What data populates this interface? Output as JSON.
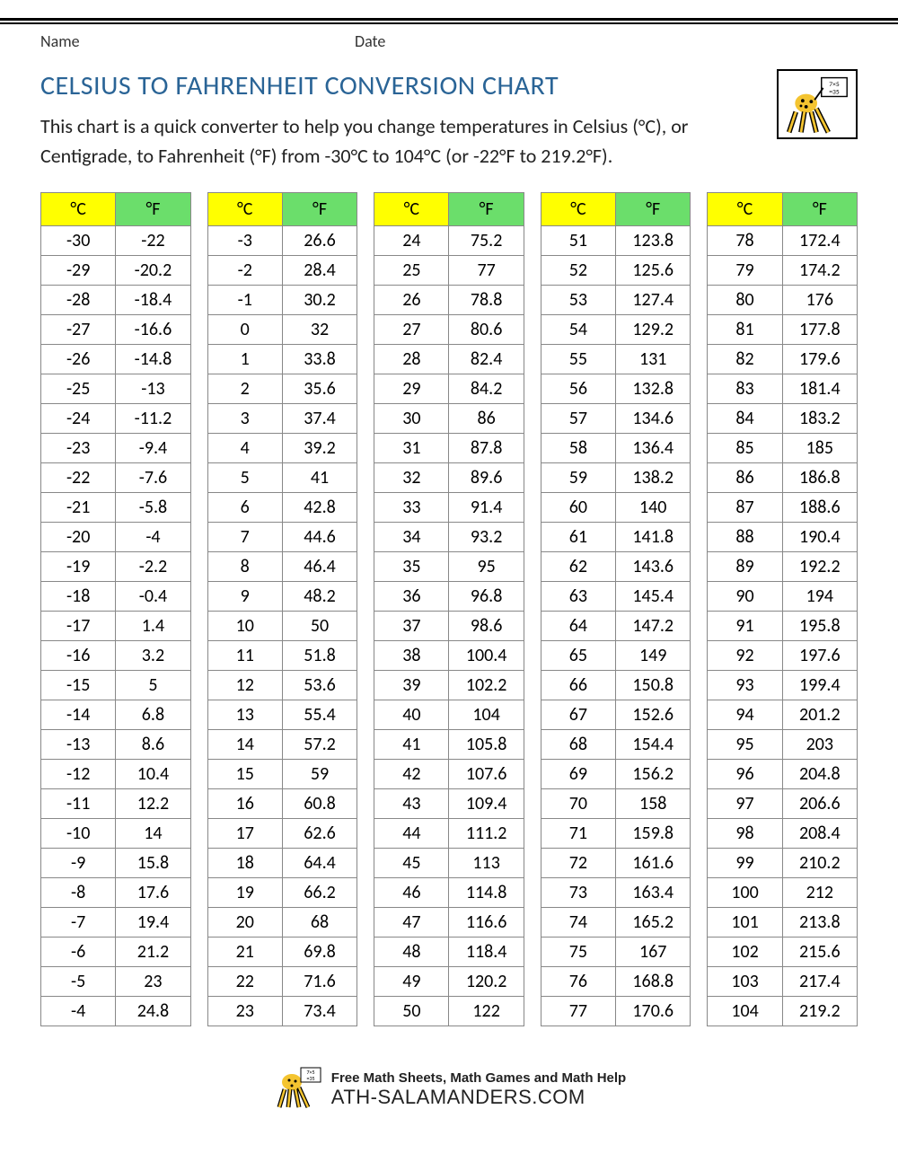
{
  "labels": {
    "name": "Name",
    "date": "Date"
  },
  "title": "CELSIUS TO FAHRENHEIT CONVERSION CHART",
  "description": "This chart is a quick converter to help you change temperatures in Celsius (°C), or Centigrade, to Fahrenheit (°F) from -30°C to 104°C (or -22°F to 219.2°F).",
  "headers": {
    "c": "°C",
    "f": "°F"
  },
  "colors": {
    "title": "#2a6496",
    "c_header_bg": "#ffff00",
    "f_header_bg": "#6bde6b",
    "border": "#888888"
  },
  "range": {
    "c_start": -30,
    "c_end": 104,
    "rows_per_column": 27,
    "columns": 5
  },
  "footer": {
    "tagline": "Free Math Sheets, Math Games and Math Help",
    "site": "ATH-SALAMANDERS.COM"
  }
}
